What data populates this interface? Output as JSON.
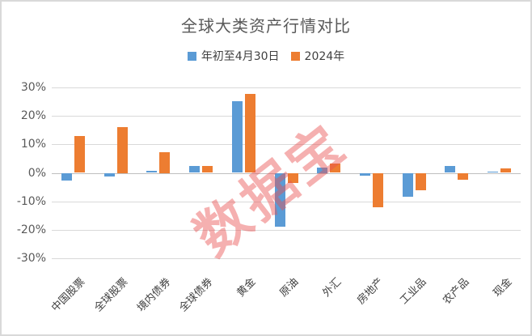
{
  "title": "全球大类资产行情对比",
  "legend": [
    {
      "label": "年初至4月30日",
      "color": "#5B9BD5"
    },
    {
      "label": "2024年",
      "color": "#ED7D31"
    }
  ],
  "watermark": {
    "text": "数据宝",
    "color": "rgba(232, 80, 80, 0.45)"
  },
  "colors": {
    "series_blue": "#5B9BD5",
    "series_orange": "#ED7D31",
    "gridline": "#D9D9D9",
    "axis_line": "#BFBFBF",
    "title_text": "#595959",
    "tick_text": "#595959",
    "category_text": "#404040"
  },
  "chart_data": {
    "type": "bar",
    "title": "全球大类资产行情对比",
    "categories": [
      "中国股票",
      "全球股票",
      "境内债券",
      "全球债券",
      "黄金",
      "原油",
      "外汇",
      "房地产",
      "工业品",
      "农产品",
      "现金"
    ],
    "series": [
      {
        "name": "年初至4月30日",
        "color": "#5B9BD5",
        "values": [
          -2.6,
          -1.4,
          0.6,
          2.3,
          25.2,
          -18.8,
          2.0,
          -0.9,
          -8.3,
          2.3,
          0.4
        ]
      },
      {
        "name": "2024年",
        "color": "#ED7D31",
        "values": [
          12.9,
          16.2,
          7.4,
          2.4,
          27.6,
          -3.4,
          3.3,
          -12.1,
          -6.1,
          -2.4,
          1.5
        ]
      }
    ],
    "xlabel": "",
    "ylabel": "",
    "ylim": [
      -30,
      30
    ],
    "ytick_step": 10,
    "ytick_labels": [
      "30%",
      "20%",
      "10%",
      "0%",
      "-10%",
      "-20%",
      "-30%"
    ],
    "grid": true,
    "legend_position": "top-center"
  }
}
